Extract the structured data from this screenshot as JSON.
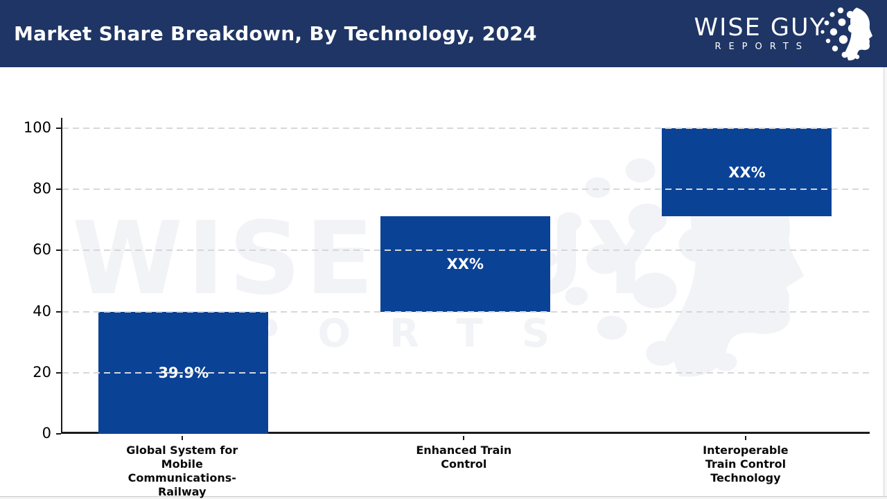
{
  "header": {
    "title": "Market Share Breakdown, By Technology, 2024",
    "logo": {
      "line1": "WISE GUY",
      "line2": "REPORTS",
      "icon": "face-profile-dots-icon"
    }
  },
  "watermark": {
    "line1": "WISE GUY",
    "line2": "REPORTS",
    "icon": "face-profile-dots-watermark-icon"
  },
  "colors": {
    "header_bg": "#1e3565",
    "bar": "#0a4296",
    "title_text": "#ffffff",
    "gridline": "#d7d7d9",
    "watermark": "#f2f3f6"
  },
  "chart_data": {
    "type": "bar",
    "subtype": "floating-segment-waterfall",
    "title": "Market Share Breakdown, By Technology, 2024",
    "categories": [
      "Global System for\nMobile\nCommunications-\nRailway",
      "Enhanced Train\nControl",
      "Interoperable\nTrain Control\nTechnology"
    ],
    "series": [
      {
        "name": "Market Share (%)",
        "segments": [
          {
            "start": 0,
            "end": 39.9,
            "label": "39.9%"
          },
          {
            "start": 39.9,
            "end": 71.2,
            "label": "XX%"
          },
          {
            "start": 71.2,
            "end": 100,
            "label": "XX%"
          }
        ]
      }
    ],
    "xlabel": "",
    "ylabel": "",
    "ylim": [
      0,
      100
    ],
    "yticks": [
      0,
      20,
      40,
      60,
      80,
      100
    ],
    "grid": "horizontal-dashed",
    "grid_above_bars": true,
    "legend": "none",
    "bar_color": "#0a4296"
  }
}
